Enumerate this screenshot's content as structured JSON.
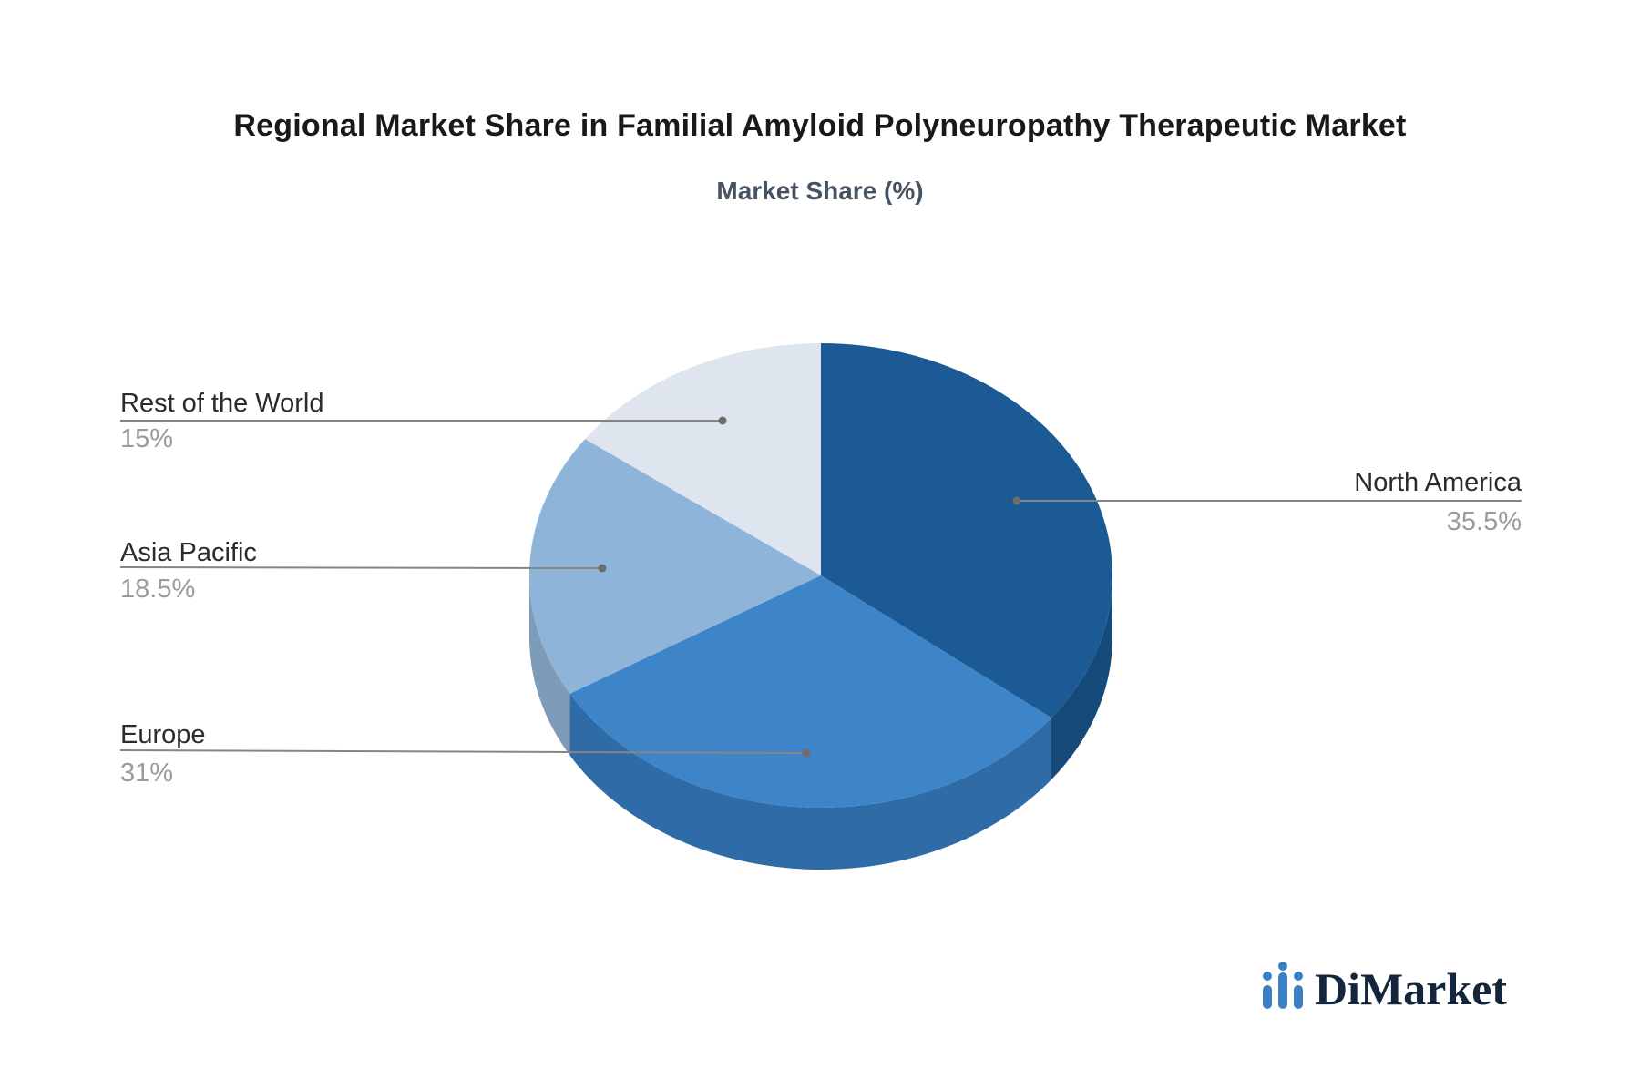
{
  "chart_data": {
    "type": "pie",
    "style": "3d-pie",
    "title": "Regional Market Share in Familial Amyloid Polyneuropathy Therapeutic Market",
    "subtitle": "Market Share (%)",
    "unit": "%",
    "start_angle": "12-o-clock",
    "direction": "clockwise",
    "legend_position": "leader-line-labels",
    "series": [
      {
        "name": "North America",
        "value": 35.5,
        "label": "35.5%",
        "color": "#1b5a94",
        "side_color": "#164a78",
        "label_side": "right"
      },
      {
        "name": "Europe",
        "value": 31,
        "label": "31%",
        "color": "#3d85c8",
        "side_color": "#2f6ca7",
        "label_side": "left"
      },
      {
        "name": "Asia Pacific",
        "value": 18.5,
        "label": "18.5%",
        "color": "#8fb4d9",
        "side_color": "#7e9cba",
        "label_side": "left"
      },
      {
        "name": "Rest of the World",
        "value": 15,
        "label": "15%",
        "color": "#dfe5ee",
        "side_color": "#c3cfdf",
        "label_side": "left"
      }
    ]
  },
  "branding": {
    "logo_text": "DiMarket",
    "logo_icon": "bar-chart-icon",
    "logo_icon_color": "#3b80c4",
    "logo_text_color": "#13263c"
  },
  "colors": {
    "background": "#ffffff",
    "title_text": "#191919",
    "subtitle_text": "#475360",
    "label_text": "#2b2b2b",
    "percent_text": "#9b9b9b",
    "leader_line": "#858585",
    "leader_dot": "#6d6d6d"
  }
}
